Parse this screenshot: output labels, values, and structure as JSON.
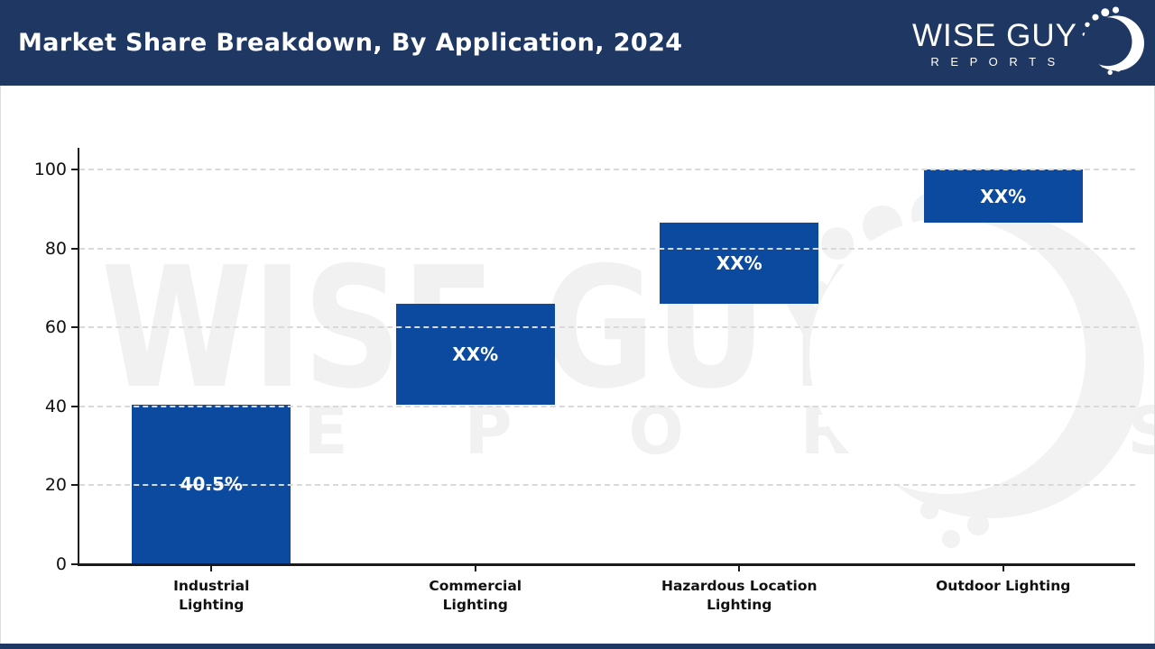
{
  "header": {
    "title": "Market Share Breakdown, By Application, 2024",
    "logo": {
      "brand": "WISE GUY",
      "sub": "R E P O R T S"
    }
  },
  "watermark": {
    "line1": "WISE GUY",
    "line2": "R E P O R T S"
  },
  "chart_data": {
    "type": "bar",
    "subtype": "floating-segment-waterfall",
    "title": "Market Share Breakdown, By Application, 2024",
    "categories": [
      "Industrial Lighting",
      "Commercial Lighting",
      "Hazardous Location Lighting",
      "Outdoor Lighting"
    ],
    "category_lines": [
      [
        "Industrial",
        "Lighting"
      ],
      [
        "Commercial",
        "Lighting"
      ],
      [
        "Hazardous Location",
        "Lighting"
      ],
      [
        "Outdoor Lighting"
      ]
    ],
    "segments": [
      {
        "category": "Industrial Lighting",
        "start": 0,
        "end": 40.5,
        "label": "40.5%"
      },
      {
        "category": "Commercial Lighting",
        "start": 40.5,
        "end": 66,
        "label": "XX%"
      },
      {
        "category": "Hazardous Location Lighting",
        "start": 66,
        "end": 86.5,
        "label": "XX%"
      },
      {
        "category": "Outdoor Lighting",
        "start": 86.5,
        "end": 100,
        "label": "XX%"
      }
    ],
    "xlabel": "",
    "ylabel": "",
    "yticks": [
      0,
      20,
      40,
      60,
      80,
      100
    ],
    "ylim": [
      0,
      105
    ],
    "grid": "horizontal-dashed",
    "legend": "none",
    "bar_color": "#0b4a9e",
    "bar_label_color": "#ffffff",
    "axis_color": "#1a1a1a",
    "grid_color": "#d9d9d9"
  },
  "colors": {
    "header_bg": "#1f3763",
    "footer_bg": "#1f3763",
    "page_bg": "#ffffff",
    "watermark": "#f1f1f1"
  }
}
